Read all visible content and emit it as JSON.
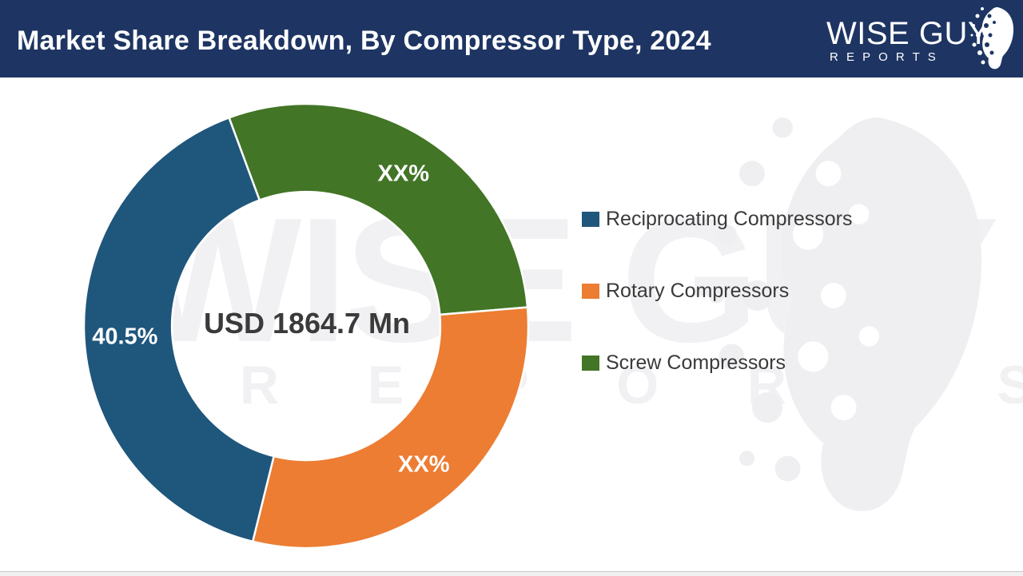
{
  "header": {
    "title": "Market Share Breakdown, By Compressor Type, 2024",
    "bg_color": "#1E3563",
    "logo": {
      "line1": "WISE GUY",
      "line2": "R E P O R T S"
    }
  },
  "chart_data": {
    "type": "pie",
    "subtype": "donut",
    "title": "Market Share Breakdown, By Compressor Type, 2024",
    "year": "2024",
    "center_label": "USD 1864.7 Mn",
    "start_angle_deg": -20.3,
    "inner_radius_ratio": 0.604,
    "segments": [
      {
        "label": "Screw Compressors",
        "display_value": "XX%",
        "percent": 29.3,
        "color": "#427526"
      },
      {
        "label": "Rotary Compressors",
        "display_value": "XX%",
        "percent": 30.2,
        "color": "#EC7D33"
      },
      {
        "label": "Reciprocating Compressors",
        "display_value": "40.5%",
        "percent": 40.5,
        "color": "#1F567C"
      }
    ],
    "legend_position": "right",
    "legend": [
      {
        "label": "Reciprocating Compressors",
        "color": "#1F567C"
      },
      {
        "label": "Rotary Compressors",
        "color": "#EC7D33"
      },
      {
        "label": "Screw Compressors",
        "color": "#427526"
      }
    ]
  },
  "watermark": {
    "line1": "WISE GUY",
    "line2": "R E P O R T S",
    "face_icon": "wise-guy-face"
  }
}
